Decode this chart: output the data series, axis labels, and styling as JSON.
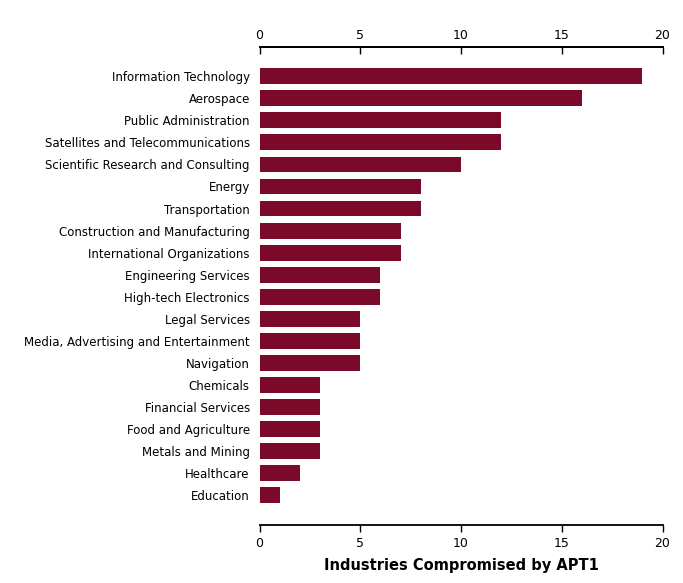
{
  "categories": [
    "Information Technology",
    "Aerospace",
    "Public Administration",
    "Satellites and Telecommunications",
    "Scientific Research and Consulting",
    "Energy",
    "Transportation",
    "Construction and Manufacturing",
    "International Organizations",
    "Engineering Services",
    "High-tech Electronics",
    "Legal Services",
    "Media, Advertising and Entertainment",
    "Navigation",
    "Chemicals",
    "Financial Services",
    "Food and Agriculture",
    "Metals and Mining",
    "Healthcare",
    "Education"
  ],
  "values": [
    19,
    16,
    12,
    12,
    10,
    8,
    8,
    7,
    7,
    6,
    6,
    5,
    5,
    5,
    3,
    3,
    3,
    3,
    2,
    1
  ],
  "bar_color": "#7B0A2A",
  "xlabel": "Industries Compromised by APT1",
  "xlim": [
    0,
    20
  ],
  "xticks": [
    0,
    5,
    10,
    15,
    20
  ],
  "background_color": "#ffffff",
  "bar_height": 0.72,
  "label_fontsize": 8.5,
  "xlabel_fontsize": 10.5,
  "tick_fontsize": 9
}
